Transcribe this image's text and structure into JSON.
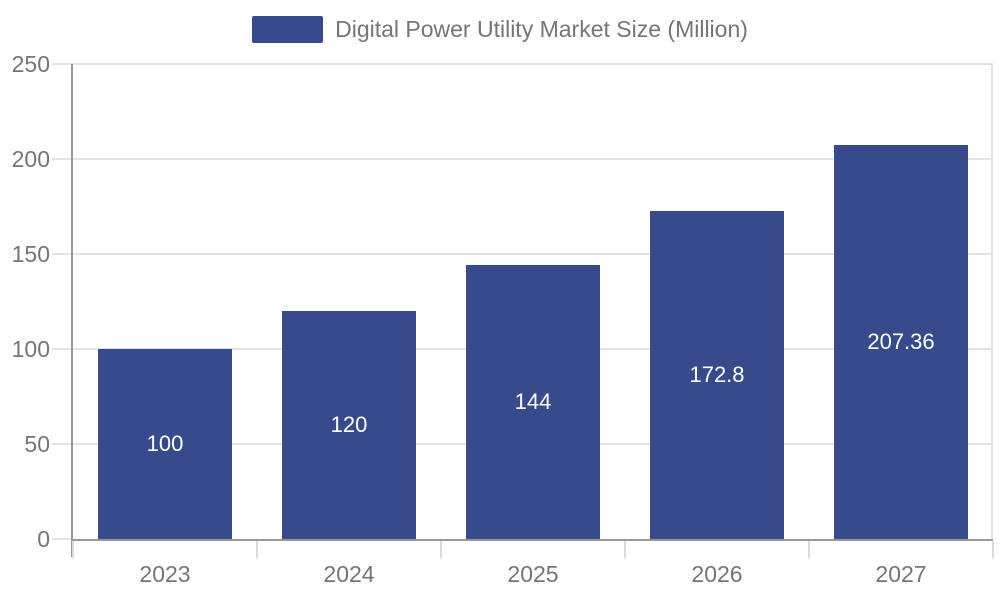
{
  "chart_data": {
    "type": "bar",
    "title": "Digital Power Utility Market Size (Million)",
    "series_name": "Digital Power Utility Market Size (Million)",
    "categories": [
      "2023",
      "2024",
      "2025",
      "2026",
      "2027"
    ],
    "values": [
      100,
      120,
      144,
      172.8,
      207.36
    ],
    "bar_labels": [
      "100",
      "120",
      "144",
      "172.8",
      "207.36"
    ],
    "xlabel": "",
    "ylabel": "",
    "ylim": [
      0,
      250
    ],
    "yticks": [
      0,
      50,
      100,
      150,
      200,
      250
    ],
    "grid": true,
    "legend_position": "top-center",
    "bar_label_position": "inside-center"
  },
  "legend": {
    "label": "Digital Power Utility Market Size (Million)"
  },
  "style": {
    "bar_color": "#364A8C",
    "axis_line_color": "#999999",
    "grid_color": "#e3e3e3",
    "boundary_tick_color": "#d9d9d9",
    "tick_text_color": "#757575",
    "bar_label_color": "#ffffff",
    "background": "#ffffff"
  }
}
